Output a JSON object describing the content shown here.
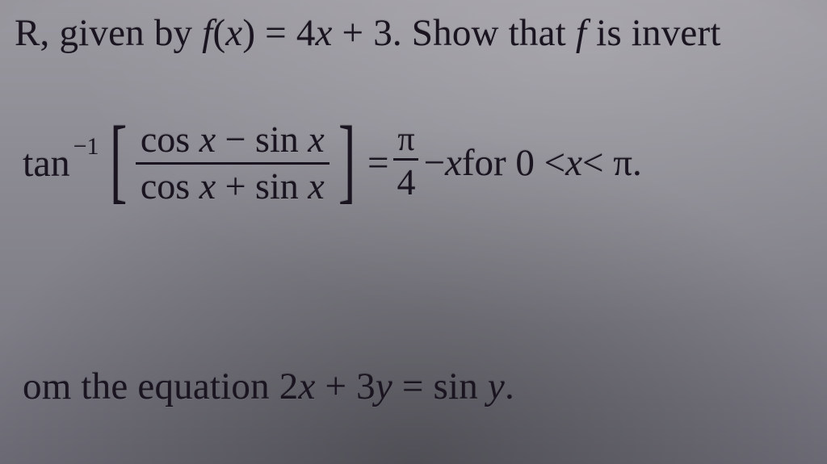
{
  "colors": {
    "text": "#1a1420",
    "bg_top": "#9b99a0",
    "bg_bottom": "#6d6c76"
  },
  "typography": {
    "family": "Times New Roman",
    "base_size_pt": 35,
    "italic_vars": true
  },
  "line1": {
    "prefix": "R, given by ",
    "func": "f",
    "open": "(",
    "xvar": "x",
    "close_eq": ") = 4",
    "xvar2": "x",
    "plus3": " + 3. Show that ",
    "f2": "f",
    "tail": " is invert"
  },
  "equation": {
    "tan": "tan",
    "exp": "−1",
    "lbracket": "[",
    "num_a": "cos ",
    "num_x1": "x",
    "num_mid": " − sin ",
    "num_x2": "x",
    "den_a": "cos ",
    "den_x1": "x",
    "den_mid": " + sin ",
    "den_x2": "x",
    "rbracket": "]",
    "equals": " = ",
    "pi": "π",
    "four": "4",
    "minus": " − ",
    "xvar": "x",
    "for": " for 0 < ",
    "xvar2": "x",
    "lt_pi": " < π."
  },
  "line3": {
    "prefix": "om the equation 2",
    "x": "x",
    "mid": " + 3",
    "y": "y",
    "eq": " = sin ",
    "y2": "y",
    "dot": "."
  }
}
